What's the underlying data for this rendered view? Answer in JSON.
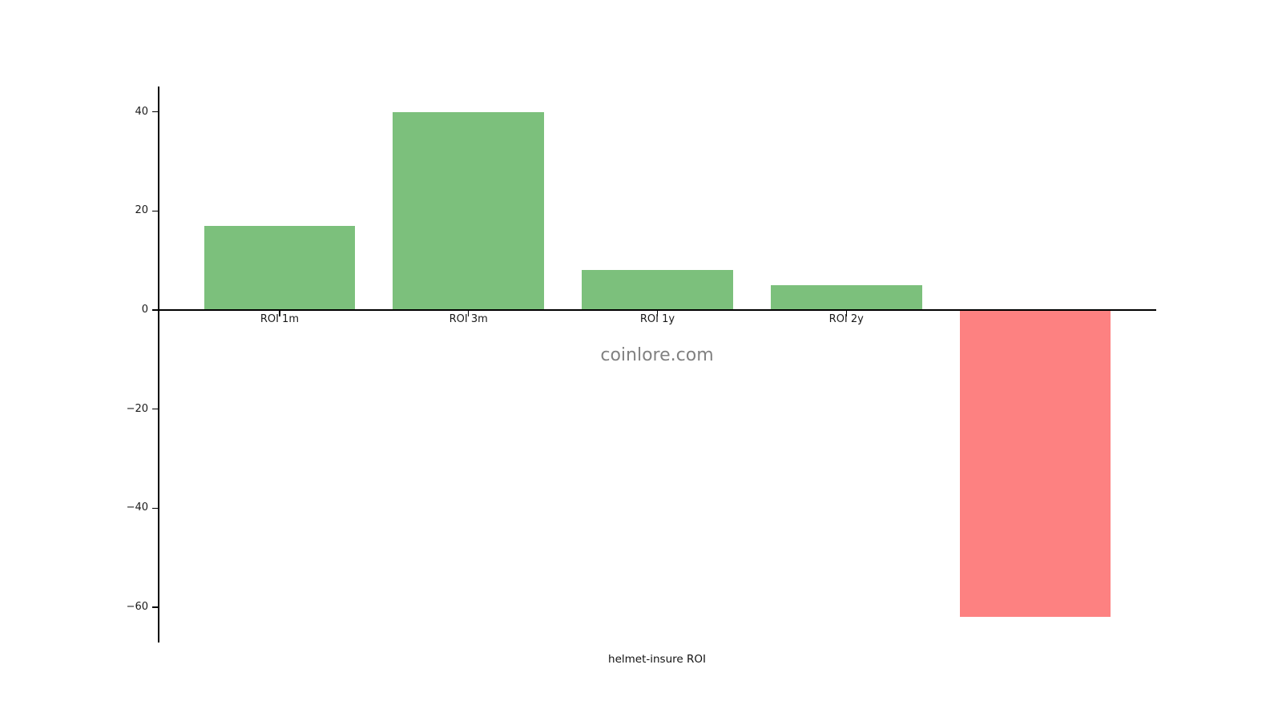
{
  "chart_data": {
    "type": "bar",
    "title": "",
    "watermark": "coinlore.com",
    "xlabel": "helmet-insure ROI",
    "ylabel": "",
    "categories": [
      "ROI 1m",
      "ROI 3m",
      "ROI 1y",
      "ROI 2y",
      ""
    ],
    "values": [
      17,
      40,
      8,
      5,
      -62
    ],
    "bar_colors": [
      "#7cc07c",
      "#7cc07c",
      "#7cc07c",
      "#7cc07c",
      "#fd8181"
    ],
    "yticks": [
      40,
      20,
      0,
      -20,
      -40,
      -60
    ],
    "ytick_labels": [
      "40",
      "20",
      "0",
      "−20",
      "−40",
      "−60"
    ],
    "ylim": [
      -67.1,
      45.1
    ],
    "xlim": [
      -0.64,
      4.64
    ],
    "bar_width": 0.8,
    "grid": false,
    "legend": null,
    "layout_hints": {
      "x_axis_position": "zero",
      "unlabeled_last_bar": true
    },
    "colors": {
      "positive": "#7cc07c",
      "negative": "#fd8181",
      "axis": "#000000",
      "tick_label": "#1a1a1a",
      "watermark": "#818181",
      "background": "#ffffff"
    }
  }
}
